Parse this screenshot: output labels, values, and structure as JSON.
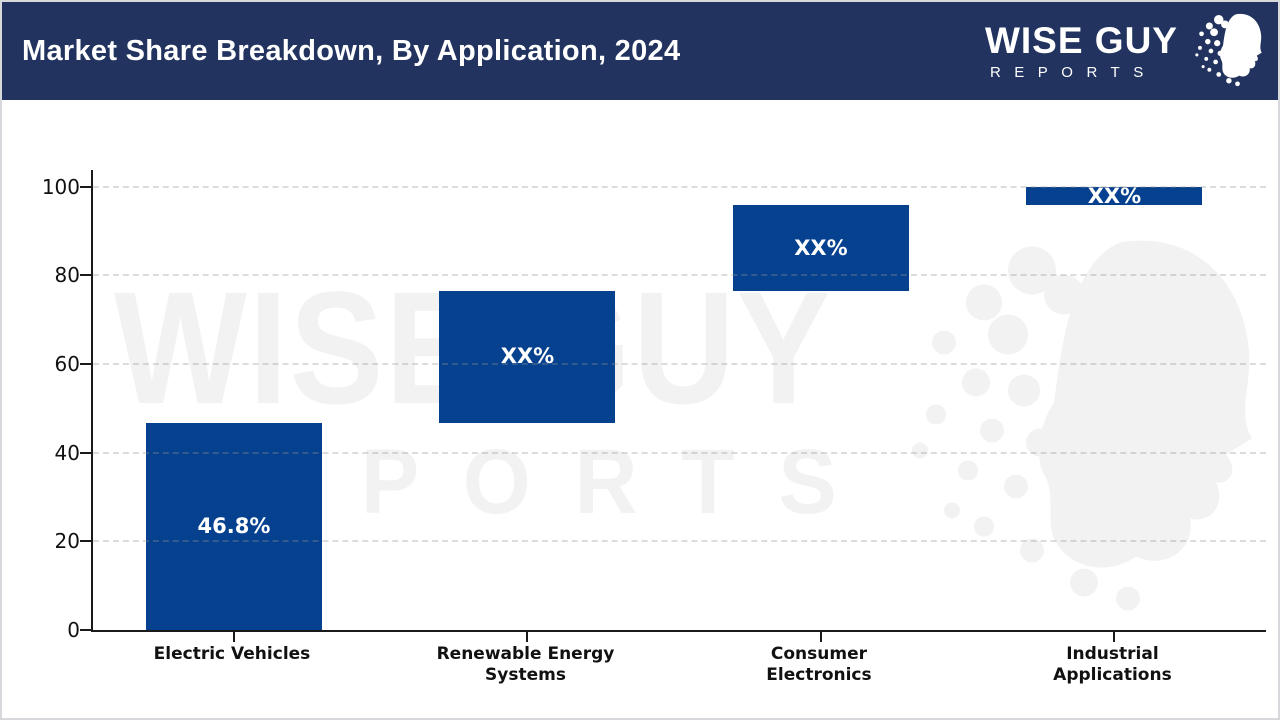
{
  "page": {
    "background": "#ffffff",
    "border_color": "#d6d8db"
  },
  "header": {
    "background": "#21335e",
    "title": "Market Share Breakdown, By Application, 2024",
    "logo": {
      "line1": "WISE GUY",
      "line2": "REPORTS",
      "icon": "dotted-head-profile"
    }
  },
  "watermark": {
    "line1": "WISE GUY",
    "line2": "REPORTS",
    "icon": "dotted-head-profile"
  },
  "chart_data": {
    "type": "bar",
    "subtype": "stacked-waterfall-segments",
    "title": "Market Share Breakdown, By Application, 2024",
    "xlabel": "",
    "ylabel": "",
    "ylim": [
      0,
      103.8
    ],
    "yticks": [
      0,
      20,
      40,
      60,
      80,
      100
    ],
    "grid": "horizontal-dashed",
    "legend_position": "none",
    "bar_color": "#05418f",
    "bar_label_color": "#ffffff",
    "categories": [
      [
        "Electric Vehicles"
      ],
      [
        "Renewable Energy",
        "Systems"
      ],
      [
        "Consumer",
        "Electronics"
      ],
      [
        "Industrial",
        "Applications"
      ]
    ],
    "segments": [
      {
        "category": "Electric Vehicles",
        "label": "46.8%",
        "start": 0,
        "end": 46.8,
        "value": 46.8
      },
      {
        "category": "Renewable Energy Systems",
        "label": "XX%",
        "start": 46.8,
        "end": 76.5,
        "value_estimated": 29.7
      },
      {
        "category": "Consumer Electronics",
        "label": "XX%",
        "start": 76.5,
        "end": 95.8,
        "value_estimated": 19.3
      },
      {
        "category": "Industrial Applications",
        "label": "XX%",
        "start": 95.8,
        "end": 100,
        "value_estimated": 4.2
      }
    ]
  }
}
